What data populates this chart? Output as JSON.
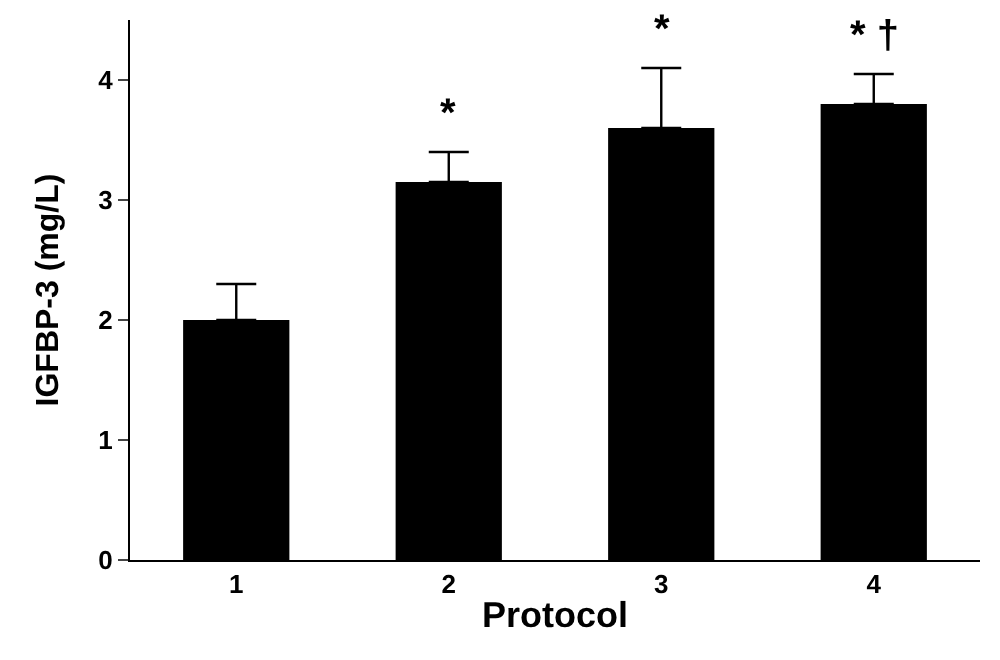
{
  "chart_data": {
    "type": "bar",
    "xlabel": "Protocol",
    "ylabel": "IGFBP-3 (mg/L)",
    "categories": [
      "1",
      "2",
      "3",
      "4"
    ],
    "values": [
      2.0,
      3.15,
      3.6,
      3.8
    ],
    "errors": [
      [
        2.0,
        2.3
      ],
      [
        3.15,
        3.4
      ],
      [
        3.6,
        4.1
      ],
      [
        3.8,
        4.05
      ]
    ],
    "color": "#000000",
    "ylim": [
      0,
      4.5
    ],
    "yticks": [
      0,
      1,
      2,
      3,
      4
    ],
    "grid": false,
    "legend": false,
    "annotations": [
      "*",
      "*",
      "* †"
    ]
  }
}
